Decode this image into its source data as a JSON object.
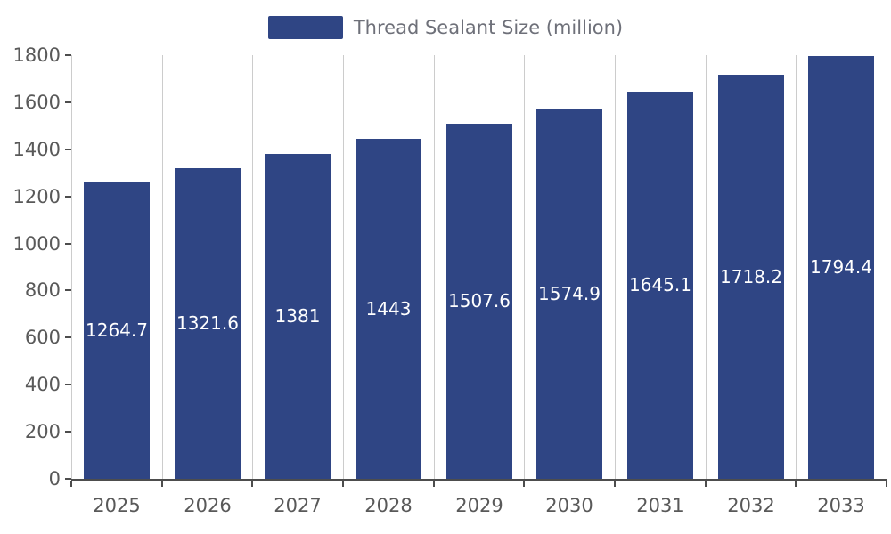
{
  "legend": {
    "label": "Thread Sealant Size (million)"
  },
  "colors": {
    "bar": "#2F4584",
    "label_text": "#ffffff",
    "axis_text": "#595959",
    "grid": "#cccccc",
    "axis_line": "#4d4d4d"
  },
  "chart_data": {
    "type": "bar",
    "title": "Thread Sealant Size (million)",
    "categories": [
      "2025",
      "2026",
      "2027",
      "2028",
      "2029",
      "2030",
      "2031",
      "2032",
      "2033"
    ],
    "values": [
      1264.7,
      1321.6,
      1381,
      1443,
      1507.6,
      1574.9,
      1645.1,
      1718.2,
      1794.4
    ],
    "xlabel": "",
    "ylabel": "",
    "ylim": [
      0,
      1800
    ],
    "ytick_step": 200,
    "grid": "vertical",
    "legend_position": "top",
    "bar_label_position": "inside-middle"
  }
}
